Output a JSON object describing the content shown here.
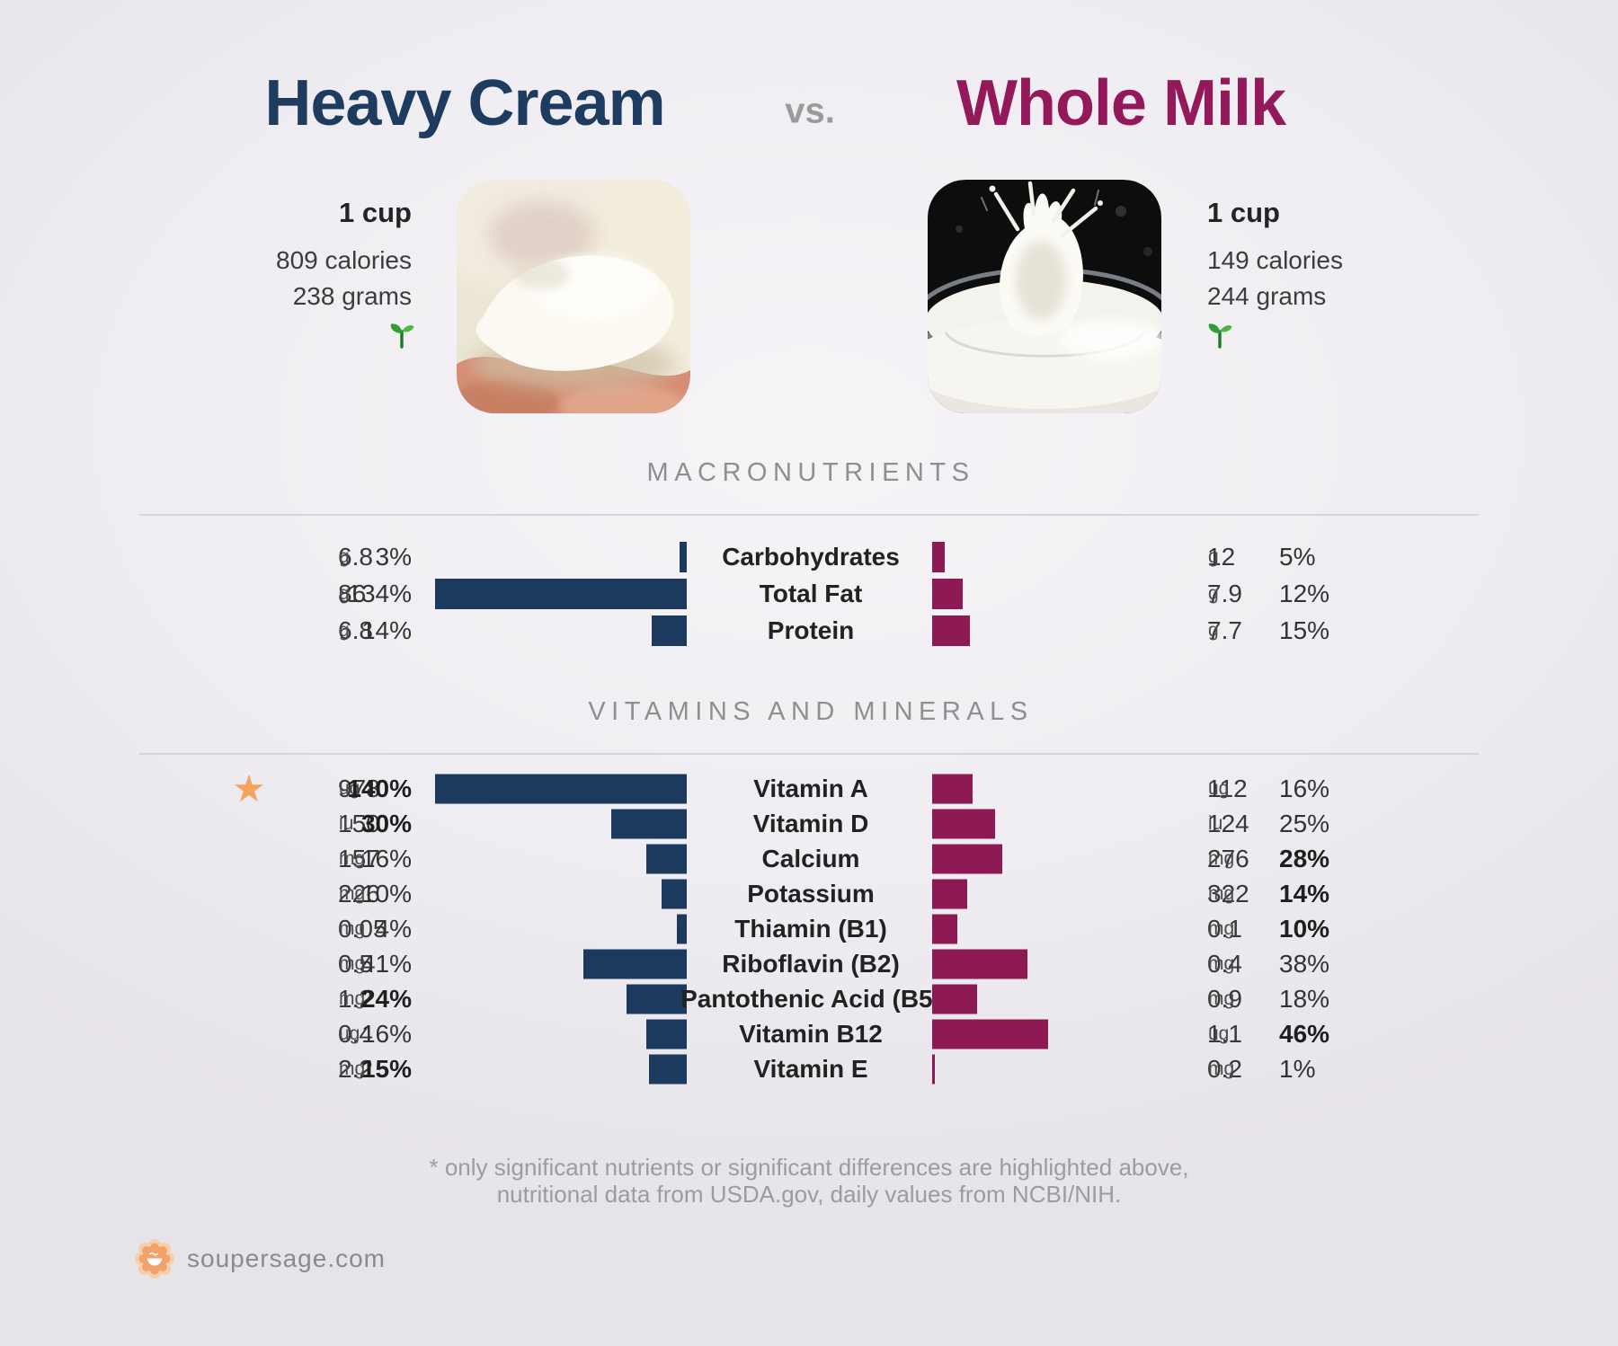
{
  "header": {
    "left_title": "Heavy Cream",
    "vs_label": "vs.",
    "right_title": "Whole Milk"
  },
  "foods": {
    "left": {
      "name": "Heavy Cream",
      "serving": "1 cup",
      "calories": "809 calories",
      "grams": "238 grams"
    },
    "right": {
      "name": "Whole Milk",
      "serving": "1 cup",
      "calories": "149 calories",
      "grams": "244 grams"
    }
  },
  "colors": {
    "left_bar": "#1c3a5e",
    "right_bar": "#8e1a55",
    "left_title": "#1d3c5f",
    "right_title": "#94195a",
    "star": "#f6a35f",
    "seedling": "#2f9e33",
    "logo_orange": "#f2a26b"
  },
  "chart_data": [
    {
      "type": "bar",
      "title": "MACRONUTRIENTS",
      "legend": [
        "Heavy Cream",
        "Whole Milk"
      ],
      "axis_note": "bar length = % daily value, capped at 100%",
      "rows": [
        {
          "label": "Carbohydrates",
          "star": false,
          "left": {
            "amount": "6.8",
            "unit": "g",
            "pct": 3,
            "bold": false
          },
          "right": {
            "amount": "12",
            "unit": "g",
            "pct": 5,
            "bold": false
          }
        },
        {
          "label": "Total Fat",
          "star": false,
          "left": {
            "amount": "86",
            "unit": "g",
            "pct": 134,
            "bold": false
          },
          "right": {
            "amount": "7.9",
            "unit": "g",
            "pct": 12,
            "bold": false
          }
        },
        {
          "label": "Protein",
          "star": false,
          "left": {
            "amount": "6.8",
            "unit": "g",
            "pct": 14,
            "bold": false
          },
          "right": {
            "amount": "7.7",
            "unit": "g",
            "pct": 15,
            "bold": false
          }
        }
      ]
    },
    {
      "type": "bar",
      "title": "VITAMINS AND MINERALS",
      "legend": [
        "Heavy Cream",
        "Whole Milk"
      ],
      "axis_note": "bar length = % daily value, capped at 100%",
      "rows": [
        {
          "label": "Vitamin A",
          "star": true,
          "left": {
            "amount": "978",
            "unit": "ug",
            "pct": 140,
            "bold": true
          },
          "right": {
            "amount": "112",
            "unit": "ug",
            "pct": 16,
            "bold": false
          }
        },
        {
          "label": "Vitamin D",
          "star": false,
          "left": {
            "amount": "150",
            "unit": "iu",
            "pct": 30,
            "bold": true
          },
          "right": {
            "amount": "124",
            "unit": "iu",
            "pct": 25,
            "bold": false
          }
        },
        {
          "label": "Calcium",
          "star": false,
          "left": {
            "amount": "157",
            "unit": "mg",
            "pct": 16,
            "bold": false
          },
          "right": {
            "amount": "276",
            "unit": "mg",
            "pct": 28,
            "bold": true
          }
        },
        {
          "label": "Potassium",
          "star": false,
          "left": {
            "amount": "226",
            "unit": "mg",
            "pct": 10,
            "bold": false
          },
          "right": {
            "amount": "322",
            "unit": "mg",
            "pct": 14,
            "bold": true
          }
        },
        {
          "label": "Thiamin (B1)",
          "star": false,
          "left": {
            "amount": "0.05",
            "unit": "mg",
            "pct": 4,
            "bold": false
          },
          "right": {
            "amount": "0.1",
            "unit": "mg",
            "pct": 10,
            "bold": true
          }
        },
        {
          "label": "Riboflavin (B2)",
          "star": false,
          "left": {
            "amount": "0.5",
            "unit": "mg",
            "pct": 41,
            "bold": false
          },
          "right": {
            "amount": "0.4",
            "unit": "mg",
            "pct": 38,
            "bold": false
          }
        },
        {
          "label": "Pantothenic Acid (B5)",
          "star": false,
          "left": {
            "amount": "1.2",
            "unit": "mg",
            "pct": 24,
            "bold": true
          },
          "right": {
            "amount": "0.9",
            "unit": "mg",
            "pct": 18,
            "bold": false
          }
        },
        {
          "label": "Vitamin B12",
          "star": false,
          "left": {
            "amount": "0.4",
            "unit": "ug",
            "pct": 16,
            "bold": false
          },
          "right": {
            "amount": "1.1",
            "unit": "ug",
            "pct": 46,
            "bold": true
          }
        },
        {
          "label": "Vitamin E",
          "star": false,
          "left": {
            "amount": "2.2",
            "unit": "mg",
            "pct": 15,
            "bold": true
          },
          "right": {
            "amount": "0.2",
            "unit": "mg",
            "pct": 1,
            "bold": false
          }
        }
      ]
    }
  ],
  "footer": {
    "note_line1": "* only significant nutrients or significant differences are highlighted above,",
    "note_line2": "nutritional data from USDA.gov, daily values from NCBI/NIH.",
    "site": "soupersage.com"
  }
}
